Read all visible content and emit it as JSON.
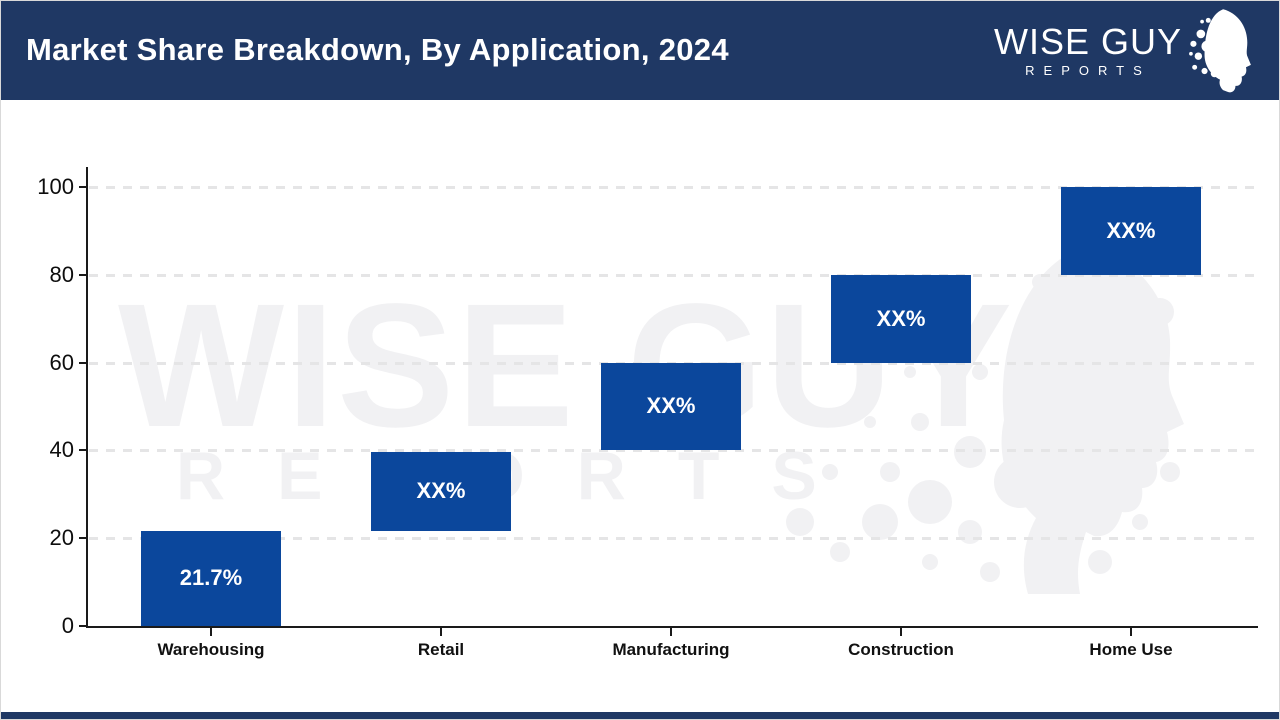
{
  "header": {
    "title": "Market Share Breakdown, By Application, 2024",
    "logo": {
      "line1": "WISE GUY",
      "line2": "REPORTS"
    }
  },
  "watermark": {
    "line1": "WISE GUY",
    "line2": "REPORTS"
  },
  "colors": {
    "header_bg": "#1F3864",
    "footer_bg": "#1F3864",
    "bar": "#0B479C",
    "bar_label": "#FFFFFF",
    "grid": "#E5E5E6",
    "axis": "#1A1A1A",
    "watermark": "#F1F1F3",
    "title_text": "#FFFFFF"
  },
  "chart_data": {
    "type": "bar",
    "subtype": "waterfall",
    "title": "Market Share Breakdown, By Application, 2024",
    "categories": [
      "Warehousing",
      "Retail",
      "Manufacturing",
      "Construction",
      "Home Use"
    ],
    "segments": [
      {
        "category": "Warehousing",
        "start": 0,
        "end": 21.7,
        "label": "21.7%"
      },
      {
        "category": "Retail",
        "start": 21.7,
        "end": 39.6,
        "label": "XX%"
      },
      {
        "category": "Manufacturing",
        "start": 40,
        "end": 60,
        "label": "XX%"
      },
      {
        "category": "Construction",
        "start": 60,
        "end": 80,
        "label": "XX%"
      },
      {
        "category": "Home Use",
        "start": 80,
        "end": 100,
        "label": "XX%"
      }
    ],
    "ylabel": "",
    "xlabel": "",
    "ylim": [
      0,
      100
    ],
    "yticks": [
      0,
      20,
      40,
      60,
      80,
      100
    ],
    "grid": "horizontal-dashed",
    "legend": "none"
  }
}
